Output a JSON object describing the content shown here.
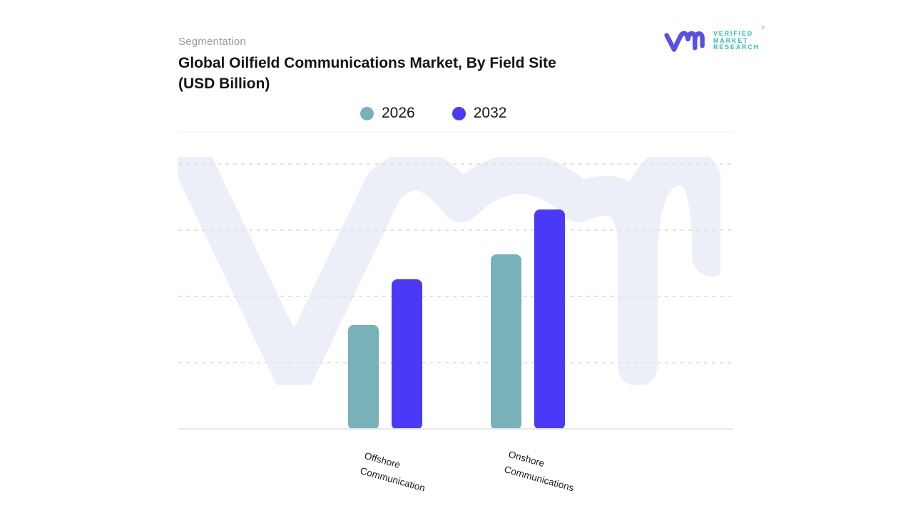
{
  "header": {
    "eyebrow": "Segmentation"
  },
  "logo": {
    "text_display": "VERIFIED\nMARKET\nRESEARCH",
    "registered": "®",
    "mark_color": "#5b50e4",
    "text_color": "#36bcb2"
  },
  "chart_data": {
    "type": "bar",
    "title": "Global Oilfield Communications Market, By Field Site (USD Billion)",
    "title_display": "Global Oilfield Communications Market, By Field Site\n(USD Billion)",
    "unit": "USD Billion",
    "categories": [
      "Offshore Communication",
      "Onshore Communications"
    ],
    "categories_display": [
      "Offshore\nCommunication",
      "Onshore\nCommunications"
    ],
    "series": [
      {
        "name": "2026",
        "color": "#76b2b8",
        "values": [
          1.58,
          2.65
        ]
      },
      {
        "name": "2032",
        "color": "#4a3af8",
        "values": [
          2.27,
          3.32
        ]
      }
    ],
    "value_axis": {
      "visible": false,
      "tick_labels": [],
      "gridlines": "dashed",
      "gridline_unit": 1,
      "gridline_count": 4
    },
    "legend_position": "top-center",
    "watermark": "vmr",
    "watermark_color": "#edeff8",
    "note": "values estimated in gridline units; no numeric axis labels are shown in the figure"
  }
}
